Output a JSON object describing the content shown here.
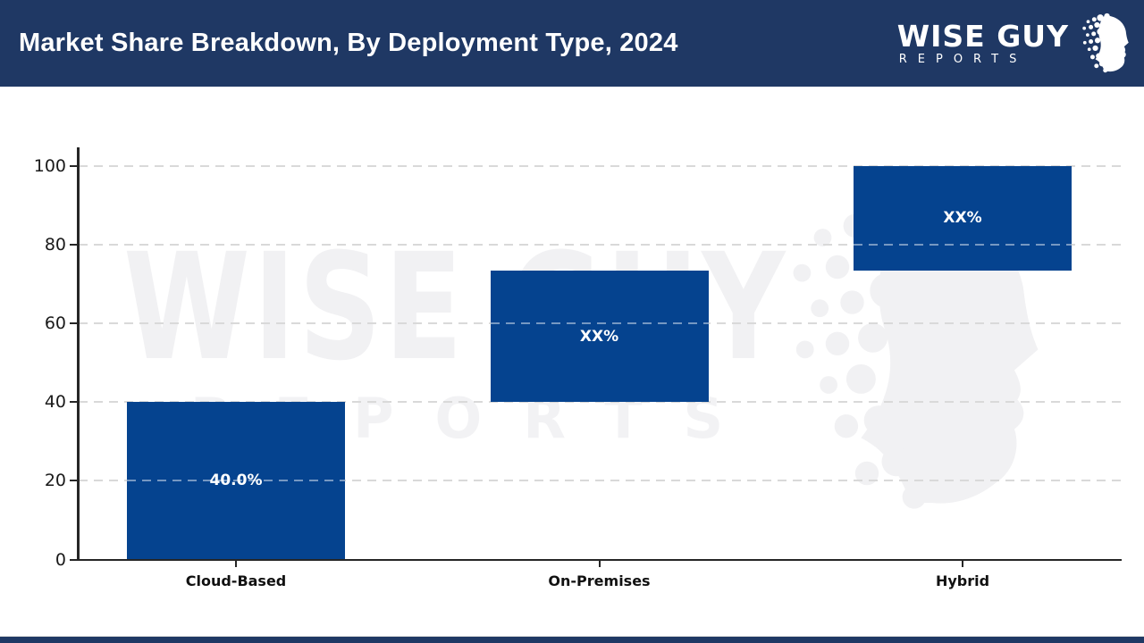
{
  "header": {
    "title": "Market Share Breakdown, By Deployment Type, 2024",
    "bg_color": "#1F3864",
    "logo": {
      "line1": "WISE GUY",
      "line2": "REPORTS"
    }
  },
  "watermark": {
    "line1": "WISE GUY",
    "line2": "REPORTS"
  },
  "chart_data": {
    "type": "bar",
    "subtype": "waterfall",
    "title": "Market Share Breakdown, By Deployment Type, 2024",
    "categories": [
      "Cloud-Based",
      "On-Premises",
      "Hybrid"
    ],
    "segments": [
      {
        "category": "Cloud-Based",
        "start": 0,
        "end": 40,
        "value": 40.0,
        "value_label": "40.0%"
      },
      {
        "category": "On-Premises",
        "start": 40,
        "end": 73.3,
        "value": 33.3,
        "value_label": "XX%"
      },
      {
        "category": "Hybrid",
        "start": 73.3,
        "end": 100,
        "value": 26.7,
        "value_label": "XX%"
      }
    ],
    "xlabel": "",
    "ylabel": "",
    "yticks": [
      0,
      20,
      40,
      60,
      80,
      100
    ],
    "ylim": [
      0,
      104.6
    ],
    "grid": "horizontal dashed",
    "legend": "none",
    "colors": {
      "bar": "#05438F",
      "grid": "#D9D9D9",
      "grid_on_bar": "rgba(255,255,255,0.45)",
      "axis": "#262626",
      "value_label": "#FFFFFF",
      "watermark": "#F1F1F3"
    }
  },
  "footer": {
    "bar_color": "#1F3864"
  }
}
